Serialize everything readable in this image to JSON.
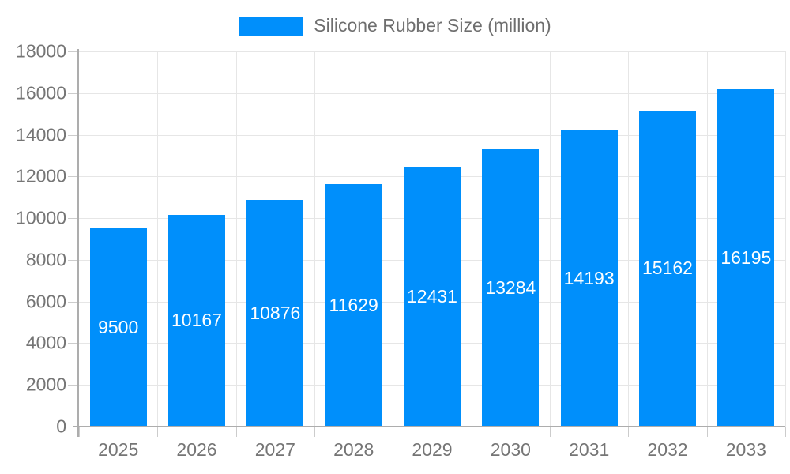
{
  "chart_data": {
    "type": "bar",
    "title": "Silicone Rubber Size (million)",
    "legend": {
      "label": "Silicone Rubber Size (million)",
      "position": "top",
      "marker": "rect"
    },
    "categories": [
      "2025",
      "2026",
      "2027",
      "2028",
      "2029",
      "2030",
      "2031",
      "2032",
      "2033"
    ],
    "series": [
      {
        "name": "Silicone Rubber Size (million)",
        "values": [
          9500,
          10167,
          10876,
          11629,
          12431,
          13284,
          14193,
          15162,
          16195
        ]
      }
    ],
    "xlabel": "",
    "ylabel": "",
    "ylim": [
      0,
      18000
    ],
    "yticks": [
      0,
      2000,
      4000,
      6000,
      8000,
      10000,
      12000,
      14000,
      16000,
      18000
    ],
    "grid": true,
    "data_labels_position": "inside-center"
  },
  "colors": {
    "bar": "#008ffb",
    "data_label": "#ffffff",
    "axis_text": "#757575",
    "legend_text": "#6e6e6e",
    "grid_line": "#e6e6e6",
    "tick_line": "#cccccc",
    "axis_line": "#adadad",
    "background": "#ffffff"
  }
}
